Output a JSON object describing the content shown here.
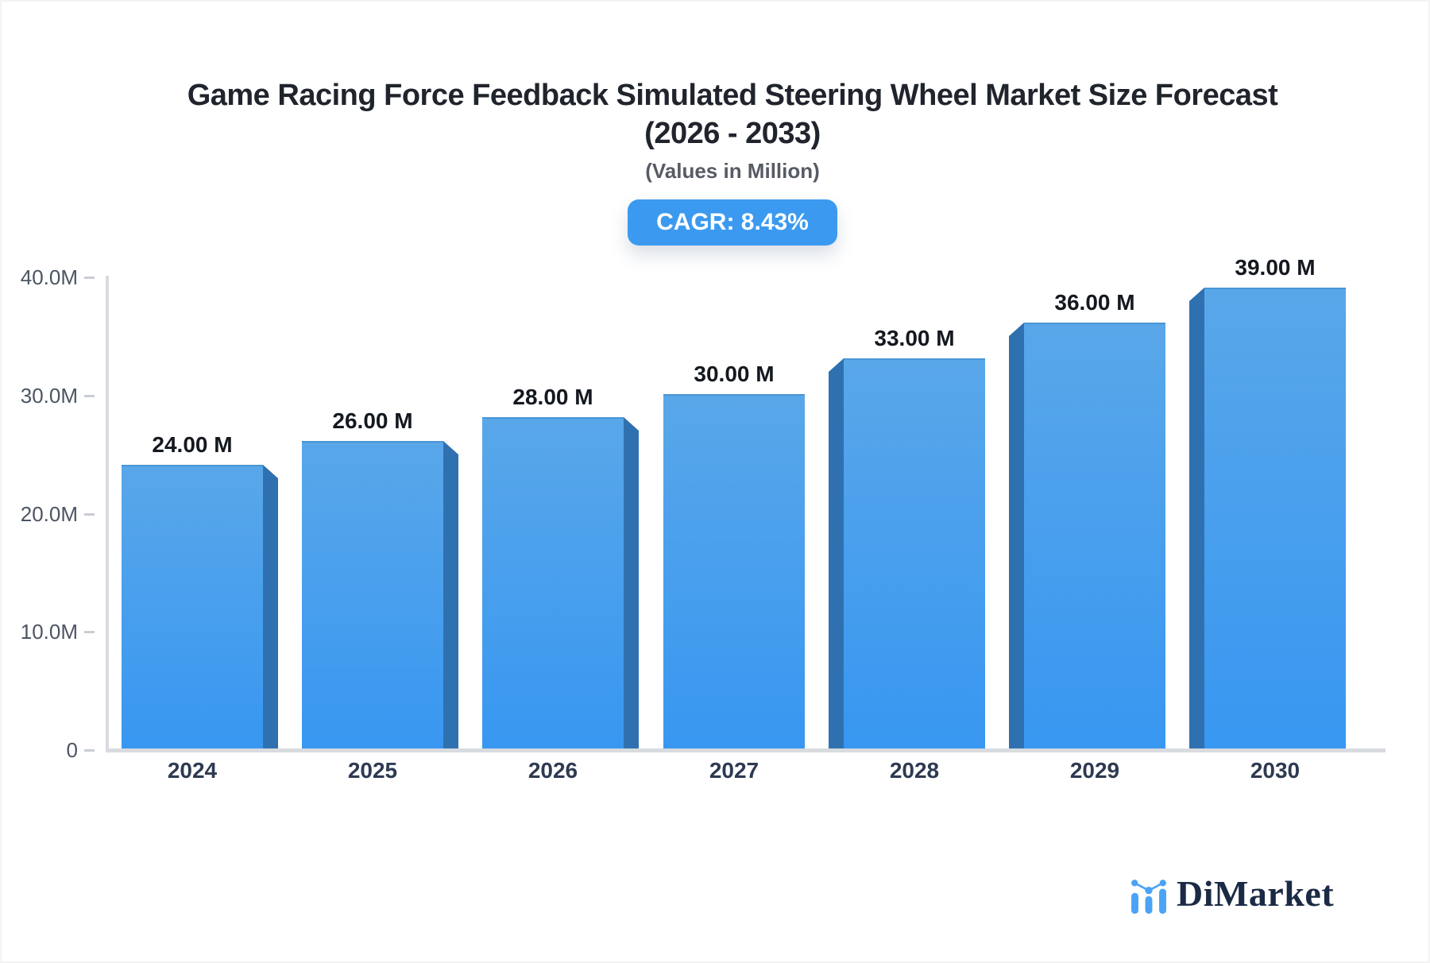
{
  "header": {
    "title_line1": "Game Racing Force Feedback Simulated Steering Wheel Market Size Forecast",
    "title_line2": "(2026 - 2033)",
    "subtitle": "(Values in Million)",
    "cagr_badge": "CAGR: 8.43%"
  },
  "branding": {
    "logo_text": "DiMarket"
  },
  "colors": {
    "bar_top": "#59A7E9",
    "bar_bottom": "#3897F1",
    "bar_side": "#2F71B0",
    "badge_bg": "#3B9AF0",
    "logo_blue": "#4AA3F5",
    "navy": "#1B2A45",
    "axis_line": "#D8DBDF",
    "tick_label": "#4B5563",
    "x_label": "#2E3A52",
    "value_label": "#14181F",
    "title": "#20242C",
    "subtitle": "#565B64"
  },
  "chart_data": {
    "type": "bar",
    "title": "Game Racing Force Feedback Simulated Steering Wheel Market Size Forecast (2026 - 2033)",
    "subtitle": "(Values in Million)",
    "cagr_percent": 8.43,
    "unit": "Million",
    "categories": [
      "2024",
      "2025",
      "2026",
      "2027",
      "2028",
      "2029",
      "2030"
    ],
    "values": [
      24,
      26,
      28,
      30,
      33,
      36,
      39
    ],
    "value_labels": [
      "24.00 M",
      "26.00 M",
      "28.00 M",
      "30.00 M",
      "33.00 M",
      "36.00 M",
      "39.00 M"
    ],
    "xlabel": "",
    "ylabel": "",
    "ylim": [
      0,
      40
    ],
    "grid": false,
    "legend": false,
    "y_ticks": [
      {
        "value": 40,
        "label": "40.0M"
      },
      {
        "value": 30,
        "label": "30.0M"
      },
      {
        "value": 20,
        "label": "20.0M"
      },
      {
        "value": 10,
        "label": "10.0M"
      },
      {
        "value": 0,
        "label": "0"
      }
    ]
  }
}
